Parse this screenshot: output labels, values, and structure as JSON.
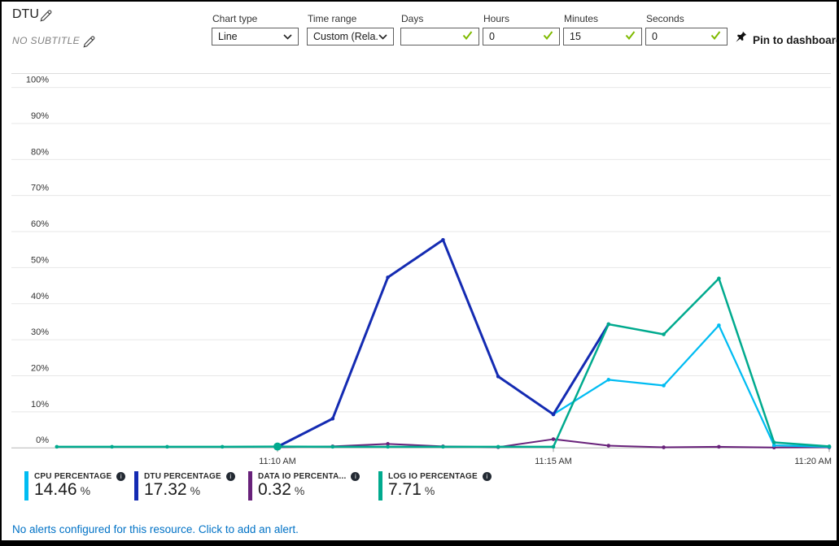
{
  "header": {
    "title": "DTU",
    "subtitle": "NO SUBTITLE"
  },
  "toolbar": {
    "chart_type_label": "Chart type",
    "chart_type_value": "Line",
    "time_range_label": "Time range",
    "time_range_value": "Custom (Rela...",
    "days_label": "Days",
    "days_value": "",
    "hours_label": "Hours",
    "hours_value": "0",
    "minutes_label": "Minutes",
    "minutes_value": "15",
    "seconds_label": "Seconds",
    "seconds_value": "0",
    "pin_label": "Pin to dashboard"
  },
  "chart_data": {
    "type": "line",
    "title": "DTU",
    "ylabel": "",
    "xlabel": "",
    "ylim": [
      0,
      100
    ],
    "grid": true,
    "y_ticks": [
      "0%",
      "10%",
      "20%",
      "30%",
      "40%",
      "50%",
      "60%",
      "70%",
      "80%",
      "90%",
      "100%"
    ],
    "x": [
      "11:06 AM",
      "11:07 AM",
      "11:08 AM",
      "11:09 AM",
      "11:10 AM",
      "11:11 AM",
      "11:12 AM",
      "11:13 AM",
      "11:14 AM",
      "11:15 AM",
      "11:16 AM",
      "11:17 AM",
      "11:18 AM",
      "11:19 AM",
      "11:20 AM"
    ],
    "x_axis_labels": [
      {
        "text": "11:10 AM",
        "index": 4
      },
      {
        "text": "11:15 AM",
        "index": 9
      },
      {
        "text": "11:20 AM",
        "index": 14
      }
    ],
    "series": [
      {
        "name": "CPU PERCENTAGE",
        "color": "#00bcf2",
        "width": 2.25,
        "values": [
          null,
          null,
          null,
          null,
          null,
          null,
          null,
          null,
          null,
          9.3,
          18.9,
          17.3,
          34.0,
          0.7,
          0.3
        ]
      },
      {
        "name": "DTU PERCENTAGE",
        "color": "#142bb2",
        "width": 3,
        "values": [
          null,
          null,
          null,
          null,
          0.3,
          8.1,
          47.3,
          57.7,
          19.8,
          9.3,
          34.3,
          null,
          null,
          null,
          null
        ]
      },
      {
        "name": "DATA IO PERCENTAGE",
        "color": "#68217a",
        "width": 2,
        "values": [
          null,
          null,
          null,
          null,
          0.2,
          0.4,
          1.1,
          0.4,
          0.2,
          2.4,
          0.6,
          0.15,
          0.3,
          0.1,
          0.15
        ]
      },
      {
        "name": "LOG IO PERCENTAGE",
        "color": "#00aa8e",
        "width": 2.5,
        "emphasis_point": 4,
        "values": [
          0.3,
          0.3,
          0.3,
          0.3,
          0.35,
          0.3,
          0.3,
          0.3,
          0.3,
          0.3,
          34.3,
          31.5,
          47.0,
          1.5,
          0.4
        ]
      }
    ],
    "legend_position": "bottom"
  },
  "legend": [
    {
      "label": "CPU PERCENTAGE",
      "value": "14.46",
      "unit": "%",
      "color": "#00bcf2"
    },
    {
      "label": "DTU PERCENTAGE",
      "value": "17.32",
      "unit": "%",
      "color": "#142bb2"
    },
    {
      "label": "DATA IO PERCENTA...",
      "value": "0.32",
      "unit": "%",
      "color": "#68217a"
    },
    {
      "label": "LOG IO PERCENTAGE",
      "value": "7.71",
      "unit": "%",
      "color": "#00aa8e"
    }
  ],
  "footer": {
    "alert_text": "No alerts configured for this resource. Click to add an alert."
  },
  "colors": {
    "link": "#0072c6",
    "valid_check": "#7fba00",
    "grid": "#e7e7e7",
    "axis": "#b5b5b5",
    "tick_text": "#333333"
  }
}
